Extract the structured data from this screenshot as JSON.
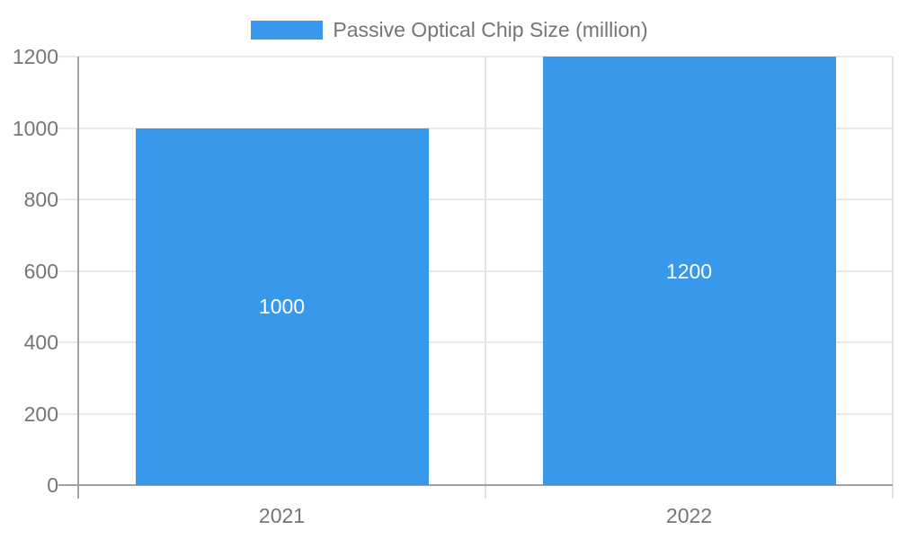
{
  "chart_data": {
    "type": "bar",
    "title": "",
    "legend": {
      "label": "Passive Optical Chip Size (million)",
      "position": "top"
    },
    "categories": [
      "2021",
      "2022"
    ],
    "series": [
      {
        "name": "Passive Optical Chip Size (million)",
        "values": [
          1000,
          1200
        ]
      }
    ],
    "bar_value_labels": [
      "1000",
      "1200"
    ],
    "xlabel": "",
    "ylabel": "",
    "ylim": [
      0,
      1200
    ],
    "yticks": [
      0,
      200,
      400,
      600,
      800,
      1000,
      1200
    ],
    "grid": true,
    "colors": {
      "bar": "#3899EC",
      "bar_label_text": "#ffffff",
      "axis_line": "#a0a0a0",
      "gridline_horizontal": "#e9e9e9",
      "gridline_vertical": "#e3e3e3",
      "tick_label_text": "#757575",
      "legend_text": "#757575",
      "background": "#ffffff"
    }
  }
}
